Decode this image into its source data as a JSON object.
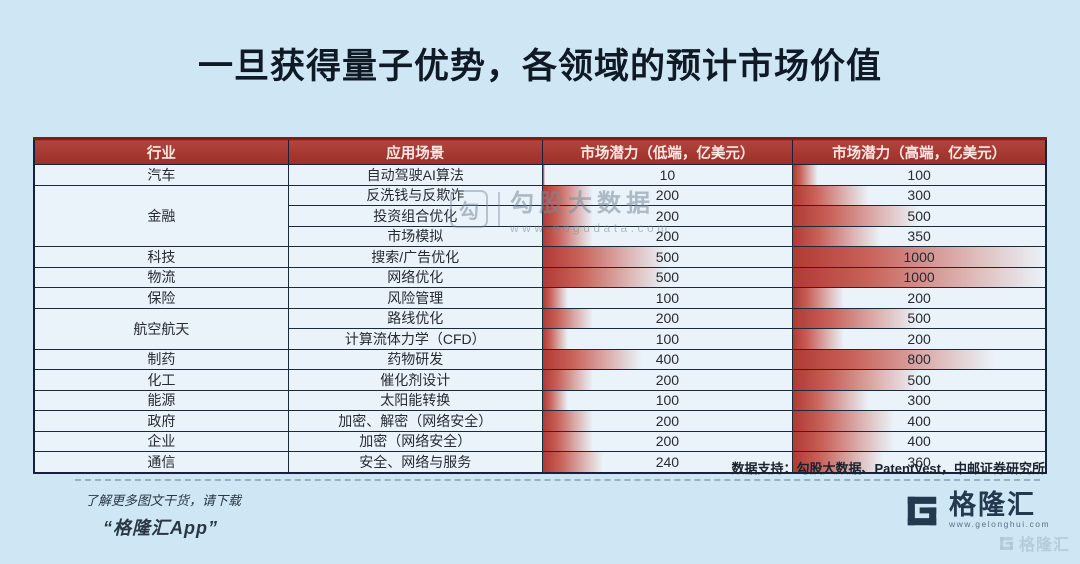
{
  "page": {
    "title": "一旦获得量子优势，各领域的预计市场价值",
    "footnote": "数据支持：勾股大数据、PatentVest，中邮证券研究所",
    "footer_left_line1": "了解更多图文干货，请下载",
    "footer_left_line2": "“格隆汇App”",
    "brand": {
      "name": "格隆汇",
      "url": "www.gelonghui.com"
    },
    "corner_watermark": "格隆汇",
    "center_watermark": {
      "logo_char": "勾",
      "name": "勾股大数据",
      "url": "www.gogudata.com"
    }
  },
  "chart_data": {
    "type": "table",
    "title": "一旦获得量子优势，各领域的预计市场价值",
    "headers": [
      "行业",
      "应用场景",
      "市场潜力（低端，亿美元）",
      "市场潜力（高端，亿美元）"
    ],
    "bar_scale_max": 1000,
    "groups": [
      {
        "industry": "汽车",
        "apps": [
          {
            "name": "自动驾驶AI算法",
            "low": 10,
            "high": 100
          }
        ]
      },
      {
        "industry": "金融",
        "apps": [
          {
            "name": "反洗钱与反欺诈",
            "low": 200,
            "high": 300
          },
          {
            "name": "投资组合优化",
            "low": 200,
            "high": 500
          },
          {
            "name": "市场模拟",
            "low": 200,
            "high": 350
          }
        ]
      },
      {
        "industry": "科技",
        "apps": [
          {
            "name": "搜索/广告优化",
            "low": 500,
            "high": 1000
          }
        ]
      },
      {
        "industry": "物流",
        "apps": [
          {
            "name": "网络优化",
            "low": 500,
            "high": 1000
          }
        ]
      },
      {
        "industry": "保险",
        "apps": [
          {
            "name": "风险管理",
            "low": 100,
            "high": 200
          }
        ]
      },
      {
        "industry": "航空航天",
        "apps": [
          {
            "name": "路线优化",
            "low": 200,
            "high": 500
          },
          {
            "name": "计算流体力学（CFD）",
            "low": 100,
            "high": 200
          }
        ]
      },
      {
        "industry": "制药",
        "apps": [
          {
            "name": "药物研发",
            "low": 400,
            "high": 800
          }
        ]
      },
      {
        "industry": "化工",
        "apps": [
          {
            "name": "催化剂设计",
            "low": 200,
            "high": 500
          }
        ]
      },
      {
        "industry": "能源",
        "apps": [
          {
            "name": "太阳能转换",
            "low": 100,
            "high": 300
          }
        ]
      },
      {
        "industry": "政府",
        "apps": [
          {
            "name": "加密、解密（网络安全）",
            "low": 200,
            "high": 400
          }
        ]
      },
      {
        "industry": "企业",
        "apps": [
          {
            "name": "加密（网络安全）",
            "low": 200,
            "high": 400
          }
        ]
      },
      {
        "industry": "通信",
        "apps": [
          {
            "name": "安全、网络与服务",
            "low": 240,
            "high": 360
          }
        ]
      }
    ]
  },
  "colors": {
    "page_bg": "#cfe7f5",
    "header_bg": "#a5362f",
    "bar_red": "#b03a34",
    "cell_bg": "#eaf3fa",
    "border": "#1c2b3c",
    "brand_navy": "#24384e"
  }
}
